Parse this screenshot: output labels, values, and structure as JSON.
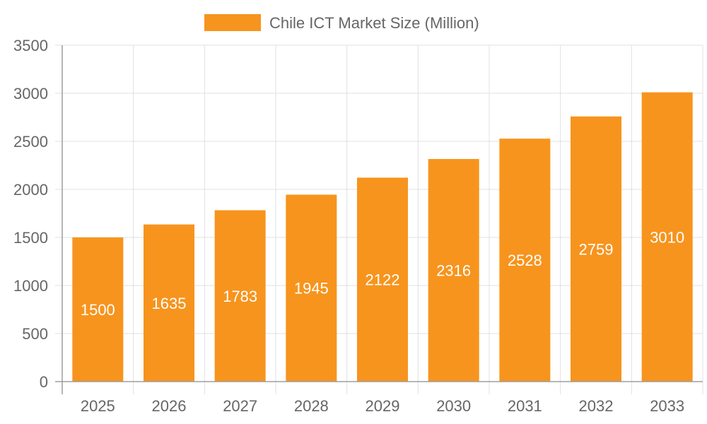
{
  "chart_data": {
    "type": "bar",
    "categories": [
      "2025",
      "2026",
      "2027",
      "2028",
      "2029",
      "2030",
      "2031",
      "2032",
      "2033"
    ],
    "series": [
      {
        "name": "Chile ICT Market Size (Million)",
        "values": [
          1500,
          1635,
          1783,
          1945,
          2122,
          2316,
          2528,
          2759,
          3010
        ],
        "color": "#f7941d"
      }
    ],
    "ylim": [
      0,
      3500
    ],
    "yticks": [
      0,
      500,
      1000,
      1500,
      2000,
      2500,
      3000,
      3500
    ],
    "grid": true,
    "legend_position": "top-center",
    "data_labels": true
  },
  "colors": {
    "bar": "#f7941d",
    "grid": "#e0e0e0",
    "axis": "#9e9e9e",
    "text": "#666666",
    "label_text": "#ffffff"
  }
}
